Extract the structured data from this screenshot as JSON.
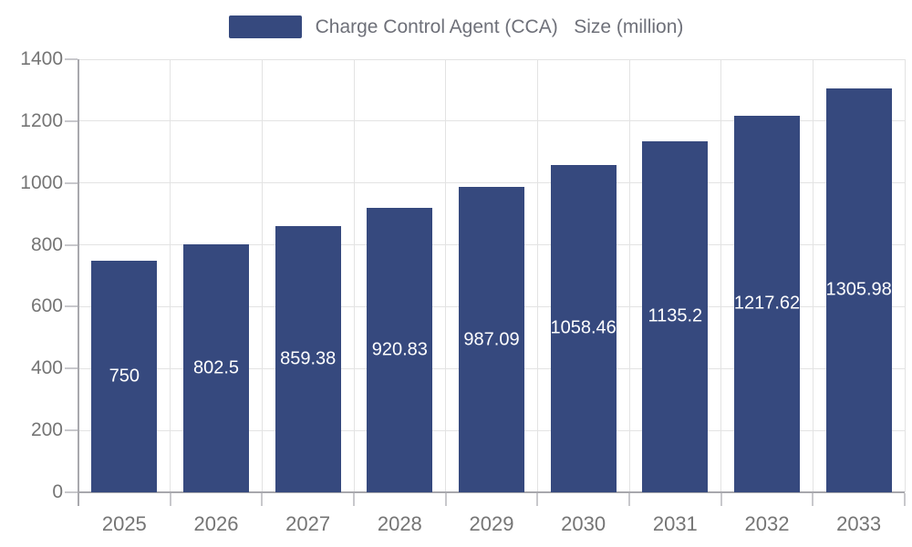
{
  "chart_data": {
    "type": "bar",
    "title": "",
    "legend": "Charge Control Agent (CCA)   Size (million)",
    "legend_position": "top",
    "categories": [
      "2025",
      "2026",
      "2027",
      "2028",
      "2029",
      "2030",
      "2031",
      "2032",
      "2033"
    ],
    "values": [
      750,
      802.5,
      859.38,
      920.83,
      987.09,
      1058.46,
      1135.2,
      1217.62,
      1305.98
    ],
    "value_labels": [
      "750",
      "802.5",
      "859.38",
      "920.83",
      "987.09",
      "1058.46",
      "1135.2",
      "1217.62",
      "1305.98"
    ],
    "xlabel": "",
    "ylabel": "",
    "ylim": [
      0,
      1400
    ],
    "yticks": [
      0,
      200,
      400,
      600,
      800,
      1000,
      1200,
      1400
    ],
    "grid": true,
    "bar_color": "#36497E",
    "bar_label_color": "#FFFFFF",
    "axis_text_color": "#757575",
    "legend_text_color": "#6E7079",
    "grid_color": "#E3E3E3",
    "axis_line_color": "#A8A8AD",
    "tick_color": "#C8C8CC"
  }
}
